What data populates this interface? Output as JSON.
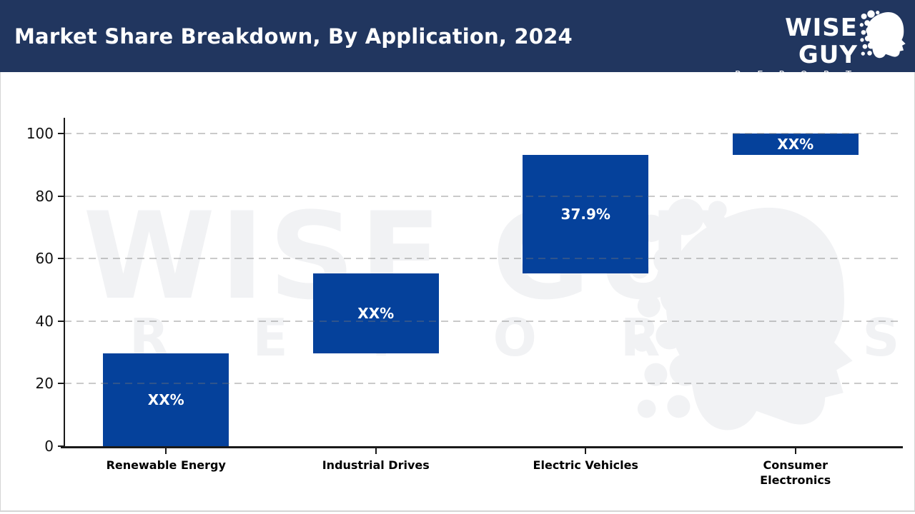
{
  "header": {
    "title": "Market Share Breakdown, By Application, 2024",
    "logo": {
      "line1": "WISE GUY",
      "line2": "REPORTS"
    }
  },
  "watermark": {
    "line1": "WISE GUY",
    "line2": "REPORTS"
  },
  "colors": {
    "header_bg": "#21365f",
    "bar": "#05419b",
    "bar_label_text": "#ffffff",
    "gridline": "#d4d4d4",
    "axis": "#1a1a1a",
    "watermark": "#f1f2f4",
    "title_text": "#ffffff"
  },
  "chart_data": {
    "type": "bar",
    "subtype": "waterfall",
    "title": "Market Share Breakdown, By Application, 2024",
    "xlabel": "",
    "ylabel": "",
    "ylim": [
      0,
      100
    ],
    "y_ticks": [
      0,
      20,
      40,
      60,
      80,
      100
    ],
    "grid": "horizontal dashed, drawn over bars",
    "legend": "none",
    "categories": [
      "Renewable Energy",
      "Industrial Drives",
      "Electric Vehicles",
      "Consumer Electronics"
    ],
    "segments": [
      {
        "category": "Renewable Energy",
        "start": 0,
        "end": 29.7,
        "value": 29.7,
        "label": "XX%"
      },
      {
        "category": "Industrial Drives",
        "start": 29.7,
        "end": 55.2,
        "value": 25.5,
        "label": "XX%"
      },
      {
        "category": "Electric Vehicles",
        "start": 55.2,
        "end": 93.1,
        "value": 37.9,
        "label": "37.9%"
      },
      {
        "category": "Consumer Electronics",
        "start": 93.1,
        "end": 100,
        "value": 6.9,
        "label": "XX%"
      }
    ]
  }
}
